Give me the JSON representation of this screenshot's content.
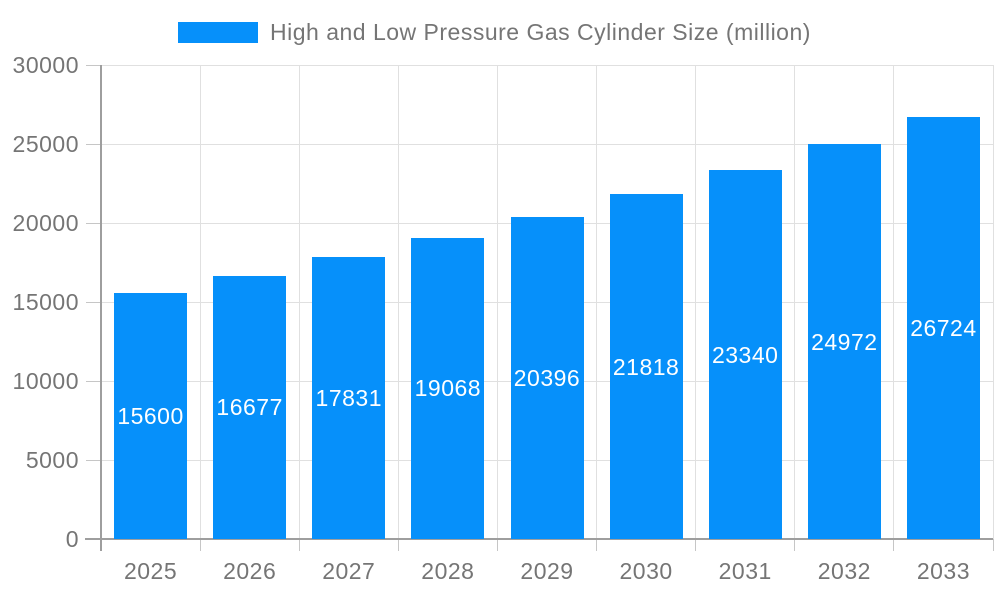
{
  "chart_data": {
    "type": "bar",
    "title": "High and Low Pressure Gas Cylinder Size (million)",
    "categories": [
      "2025",
      "2026",
      "2027",
      "2028",
      "2029",
      "2030",
      "2031",
      "2032",
      "2033"
    ],
    "values": [
      15600,
      16677,
      17831,
      19068,
      20396,
      21818,
      23340,
      24972,
      26724
    ],
    "bar_labels": [
      "15600",
      "16677",
      "17831",
      "19068",
      "20396",
      "21818",
      "23340",
      "24972",
      "26724"
    ],
    "xlabel": "",
    "ylabel": "",
    "ylim": [
      0,
      30000
    ],
    "y_ticks": [
      "0",
      "5000",
      "10000",
      "15000",
      "20000",
      "25000",
      "30000"
    ],
    "grid": true,
    "legend_position": "top",
    "colors": {
      "bar": "#0690fa",
      "label_text": "#757575",
      "bar_value_text": "#ffffff",
      "axis_line": "#9e9e9e",
      "gridline": "#e0e0e0",
      "tick": "#c6c6c6",
      "background": "#ffffff"
    }
  }
}
